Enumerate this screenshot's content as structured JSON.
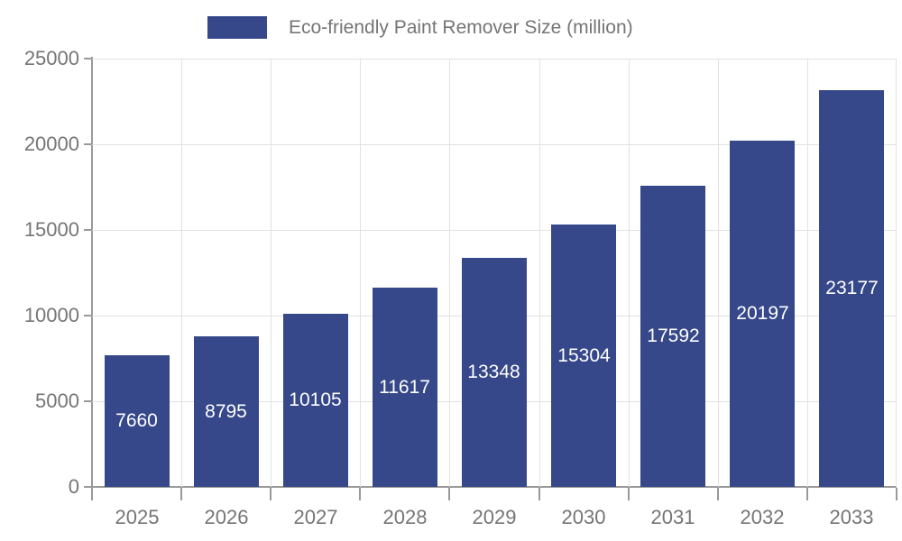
{
  "legend": {
    "label": "Eco-friendly Paint Remover Size (million)"
  },
  "chart_data": {
    "type": "bar",
    "title": "Eco-friendly Paint Remover Size (million)",
    "categories": [
      "2025",
      "2026",
      "2027",
      "2028",
      "2029",
      "2030",
      "2031",
      "2032",
      "2033"
    ],
    "values": [
      7660,
      8795,
      10105,
      11617,
      13348,
      15304,
      17592,
      20197,
      23177
    ],
    "series_name": "Eco-friendly Paint Remover Size (million)",
    "xlabel": "",
    "ylabel": "",
    "ylim": [
      0,
      25000
    ],
    "yticks": [
      0,
      5000,
      10000,
      15000,
      20000,
      25000
    ],
    "grid": true,
    "legend_position": "top",
    "bar_label_position": "center-inside"
  },
  "style": {
    "bar_color": "#36488A",
    "bar_label_color": "#ffffff",
    "text_color": "#757575",
    "axis_color": "#999999",
    "grid_color": "#e2e2e2",
    "background": "#ffffff"
  }
}
